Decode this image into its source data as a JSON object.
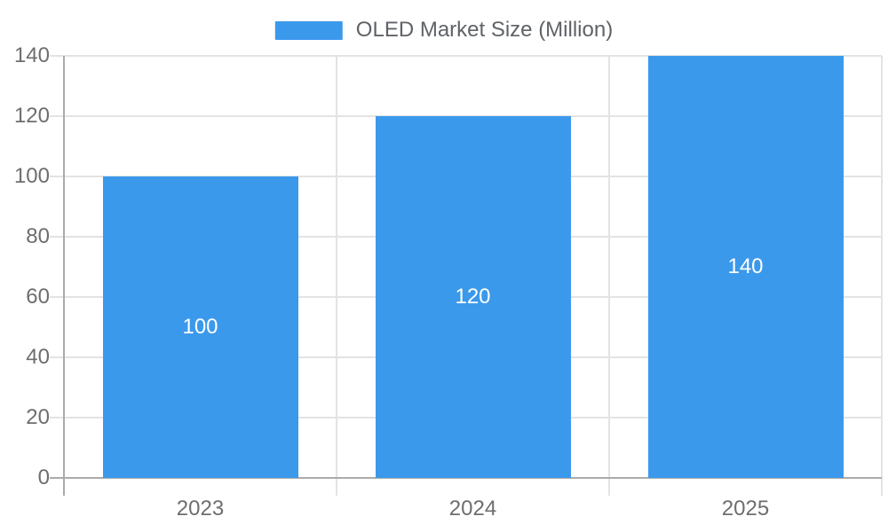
{
  "chart_data": {
    "type": "bar",
    "title": "",
    "legend": {
      "label": "OLED Market Size (Million)",
      "position": "top-center"
    },
    "categories": [
      "2023",
      "2024",
      "2025"
    ],
    "series": [
      {
        "name": "OLED Market Size (Million)",
        "values": [
          100,
          120,
          140
        ],
        "color": "#3B99EC"
      }
    ],
    "value_label_position": "inside-middle",
    "xlabel": "",
    "ylabel": "",
    "ylim": [
      0,
      140
    ],
    "ytick_interval": 20,
    "ytick_labels": [
      "0",
      "20",
      "40",
      "60",
      "80",
      "100",
      "120",
      "140"
    ],
    "grid": true,
    "colors": {
      "bar": "#3B99EC",
      "bar_label_text": "#FFFFFF",
      "axis_line": "#ABABAB",
      "gridline": "#E3E3E3",
      "tick_text": "#6E6E6E",
      "legend_text": "#5F6368",
      "background": "#FFFFFF"
    }
  }
}
